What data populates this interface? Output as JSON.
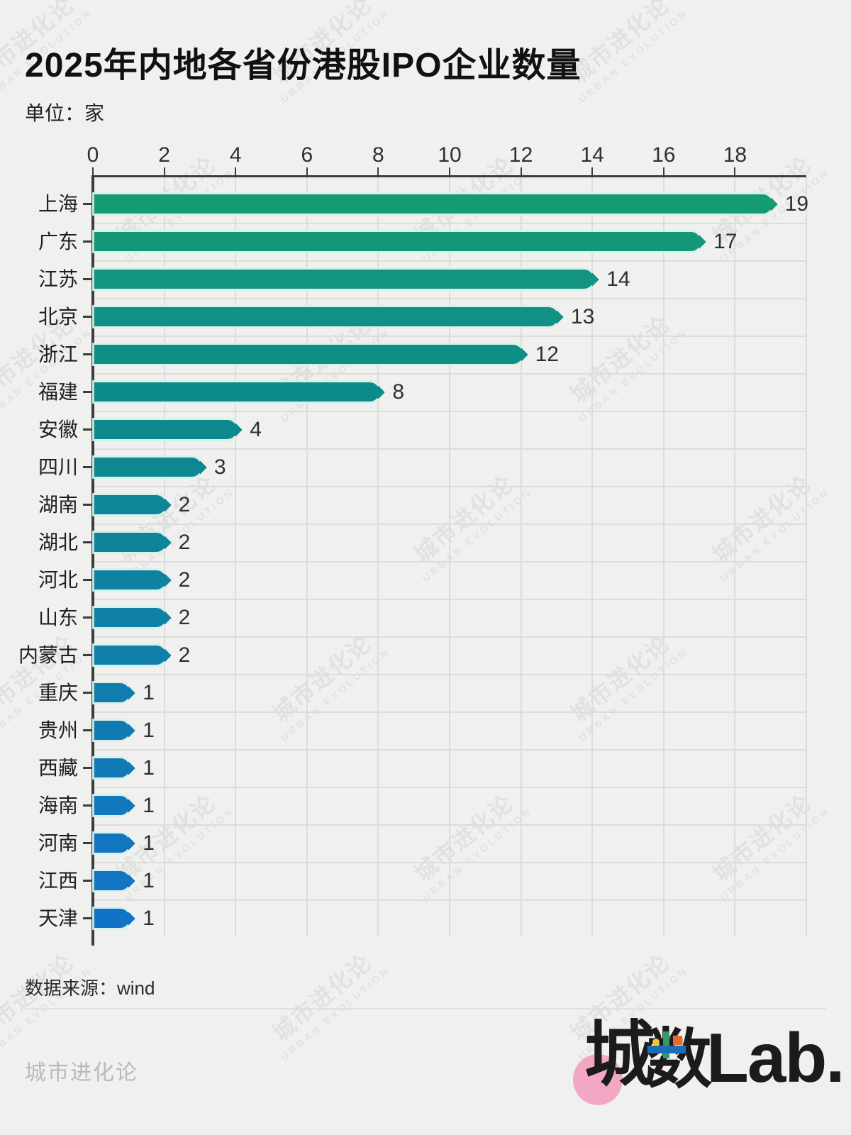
{
  "title": "2025年内地各省份港股IPO企业数量",
  "unit_label": "单位：家",
  "source_label": "数据来源：wind",
  "footer_brand": "城市进化论",
  "watermark": {
    "line1": "城市进化论",
    "line2": "URBAN EVOLUTION"
  },
  "logo": {
    "cheng": "城",
    "shu": "数",
    "lab": "Lab.",
    "pink_color": "#F4A7C5",
    "accent_green": "#2F9E63",
    "accent_blue": "#1C6FB6",
    "accent_orange": "#E66A2C",
    "accent_yellow": "#E9C53A"
  },
  "colors": {
    "background": "#F0F0EE",
    "axis": "#3C3C3C",
    "grid": "#DCDCDC",
    "halo": "#D7F0E9",
    "text_dark": "#1F1F1F"
  },
  "chart_data": {
    "type": "bar",
    "orientation": "horizontal",
    "title": "2025年内地各省份港股IPO企业数量",
    "unit": "家",
    "source": "wind",
    "categories": [
      "上海",
      "广东",
      "江苏",
      "北京",
      "浙江",
      "福建",
      "安徽",
      "四川",
      "湖南",
      "湖北",
      "河北",
      "山东",
      "内蒙古",
      "重庆",
      "贵州",
      "西藏",
      "海南",
      "河南",
      "江西",
      "天津"
    ],
    "values": [
      19,
      17,
      14,
      13,
      12,
      8,
      4,
      3,
      2,
      2,
      2,
      2,
      2,
      1,
      1,
      1,
      1,
      1,
      1,
      1
    ],
    "bar_colors": [
      "#159A72",
      "#149779",
      "#129480",
      "#119186",
      "#0F8E85",
      "#0D8B8A",
      "#0D898E",
      "#0E8793",
      "#0E8697",
      "#0E849B",
      "#0F82A0",
      "#0F81A4",
      "#0F7FA9",
      "#107DAD",
      "#107BB2",
      "#1079B6",
      "#1178BB",
      "#1176BF",
      "#1175C4",
      "#1173C8"
    ],
    "xlim": [
      0,
      20
    ],
    "x_ticks": [
      0,
      2,
      4,
      6,
      8,
      10,
      12,
      14,
      16,
      18
    ],
    "x_grid_step": 2,
    "grid": true,
    "axis_position": "top",
    "legend": "none"
  }
}
